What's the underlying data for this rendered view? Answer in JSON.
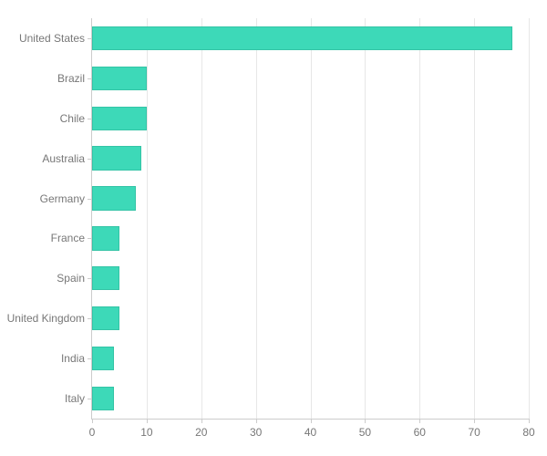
{
  "chart": {
    "type": "bar-horizontal",
    "background_color": "#ffffff",
    "grid_color": "#e7e7e7",
    "axis_color": "#cccccc",
    "label_color": "#777777",
    "label_fontsize": 12,
    "bar_color": "#3dd9b8",
    "bar_border_color": "#34c4a6",
    "bar_fill_ratio": 0.6,
    "x_axis": {
      "min": 0,
      "max": 80,
      "tick_step": 10,
      "ticks": [
        "0",
        "10",
        "20",
        "30",
        "40",
        "50",
        "60",
        "70",
        "80"
      ]
    },
    "categories": [
      {
        "label": "United States",
        "value": 77
      },
      {
        "label": "Brazil",
        "value": 10
      },
      {
        "label": "Chile",
        "value": 10
      },
      {
        "label": "Australia",
        "value": 9
      },
      {
        "label": "Germany",
        "value": 8
      },
      {
        "label": "France",
        "value": 5
      },
      {
        "label": "Spain",
        "value": 5
      },
      {
        "label": "United Kingdom",
        "value": 5
      },
      {
        "label": "India",
        "value": 4
      },
      {
        "label": "Italy",
        "value": 4
      }
    ]
  }
}
